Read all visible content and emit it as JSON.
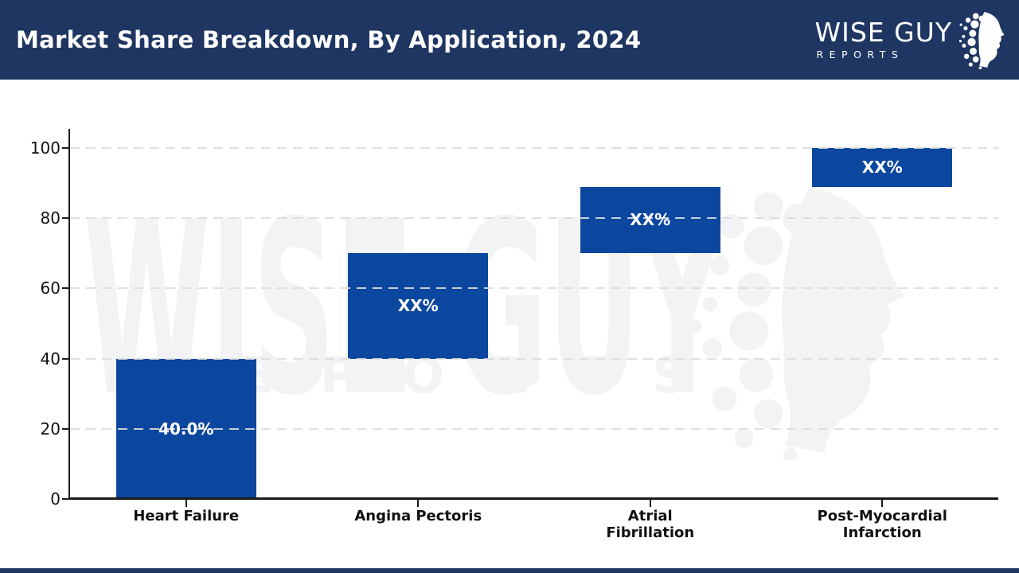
{
  "header": {
    "title": "Market Share Breakdown, By Application, 2024",
    "logo": {
      "name": "Wise Guy Reports",
      "line1": "WISE GUY",
      "line2": "REPORTS"
    }
  },
  "watermark": {
    "line1": "WISE GUY",
    "line2": "REPORTS"
  },
  "colors": {
    "header_bg": "#1f3662",
    "footer_bg": "#1f3662",
    "bar": "#0b479f",
    "bar_label": "#ffffff",
    "grid": "#dcdcdc",
    "axis": "#1a1a1a",
    "tick_label": "#111111",
    "watermark": "#f2f3f5",
    "title_text": "#ffffff"
  },
  "chart_data": {
    "type": "bar",
    "subtype": "stepped-waterfall",
    "title": "Market Share Breakdown, By Application, 2024",
    "xlabel": "",
    "ylabel": "",
    "ylim": [
      0,
      100
    ],
    "yticks": [
      0,
      20,
      40,
      60,
      80,
      100
    ],
    "grid": "horizontal-dashed",
    "legend": "none",
    "categories": [
      "Heart Failure",
      "Angina Pectoris",
      "Atrial Fibrillation",
      "Post-Myocardial Infarction"
    ],
    "category_lines": [
      [
        "Heart Failure"
      ],
      [
        "Angina Pectoris"
      ],
      [
        "Atrial",
        "Fibrillation"
      ],
      [
        "Post-Myocardial",
        "Infarction"
      ]
    ],
    "series": [
      {
        "name": "Market Share",
        "segments": [
          {
            "category": "Heart Failure",
            "start": 0,
            "end": 40,
            "label": "40.0%"
          },
          {
            "category": "Angina Pectoris",
            "start": 40,
            "end": 70,
            "label": "XX%"
          },
          {
            "category": "Atrial Fibrillation",
            "start": 70,
            "end": 89,
            "label": "XX%"
          },
          {
            "category": "Post-Myocardial Infarction",
            "start": 89,
            "end": 100,
            "label": "XX%"
          }
        ]
      }
    ]
  }
}
